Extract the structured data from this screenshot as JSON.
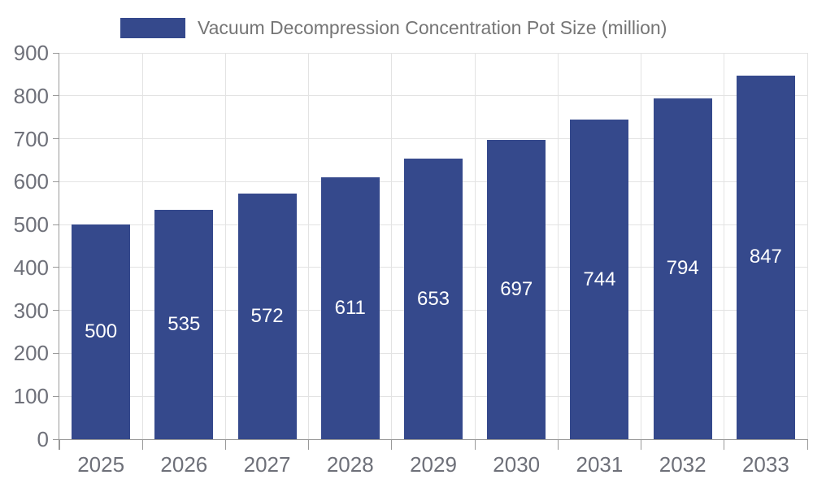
{
  "colors": {
    "background": "#FFFFFF",
    "bar": "#35498C",
    "bar_label": "#FFFFFF",
    "axis_line": "#999999",
    "grid_line": "#E3E3E3",
    "axis_text": "#6E7079",
    "legend_text": "#757575"
  },
  "chart_data": {
    "type": "bar",
    "title": "",
    "categories": [
      "2025",
      "2026",
      "2027",
      "2028",
      "2029",
      "2030",
      "2031",
      "2032",
      "2033"
    ],
    "series": [
      {
        "name": "Vacuum Decompression Concentration Pot Size (million)",
        "values": [
          500,
          535,
          572,
          611,
          653,
          697,
          744,
          794,
          847
        ],
        "color": "#35498C"
      }
    ],
    "xlabel": "",
    "ylabel": "",
    "ylim": [
      0,
      900
    ],
    "ytick_step": 100,
    "grid": true,
    "legend_position": "top",
    "value_labels": "inside-center"
  }
}
